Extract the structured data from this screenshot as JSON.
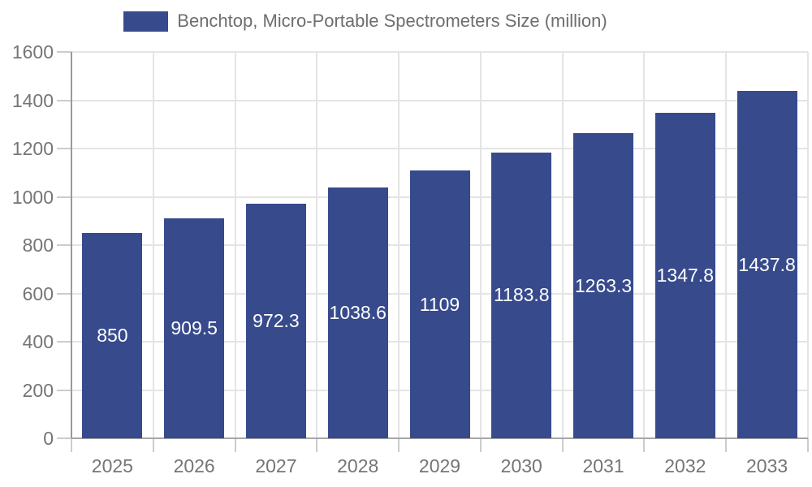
{
  "legend": {
    "label": "Benchtop, Micro-Portable Spectrometers Size (million)"
  },
  "chart_data": {
    "type": "bar",
    "title": "",
    "series_name": "Benchtop, Micro-Portable Spectrometers Size (million)",
    "categories": [
      "2025",
      "2026",
      "2027",
      "2028",
      "2029",
      "2030",
      "2031",
      "2032",
      "2033"
    ],
    "values": [
      850,
      909.5,
      972.3,
      1038.6,
      1109,
      1183.8,
      1263.3,
      1347.8,
      1437.8
    ],
    "value_labels": [
      "850",
      "909.5",
      "972.3",
      "1038.6",
      "1109",
      "1183.8",
      "1263.3",
      "1347.8",
      "1437.8"
    ],
    "xlabel": "",
    "ylabel": "",
    "ylim": [
      0,
      1600
    ],
    "y_ticks": [
      0,
      200,
      400,
      600,
      800,
      1000,
      1200,
      1400,
      1600
    ],
    "grid": true,
    "legend_position": "top",
    "bar_color": "#374a8c",
    "value_label_color": "#ffffff",
    "axis_text_color": "#757575"
  }
}
